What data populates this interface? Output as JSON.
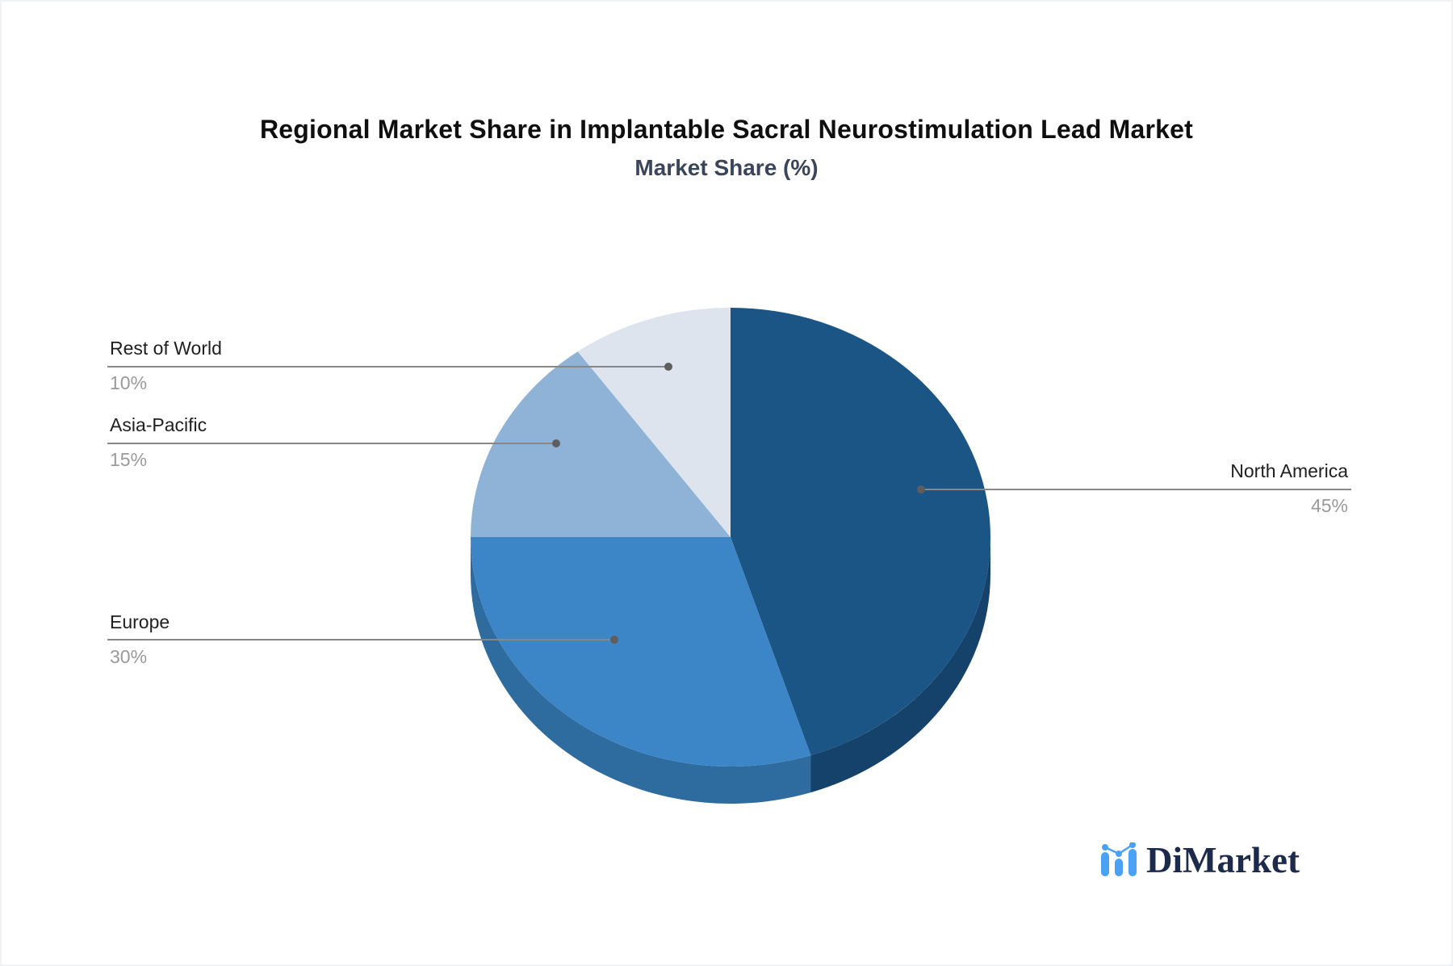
{
  "header": {
    "title": "Regional Market Share in Implantable Sacral Neurostimulation Lead Market",
    "subtitle": "Market Share (%)"
  },
  "chart_data": {
    "type": "pie",
    "title": "Regional Market Share in Implantable Sacral Neurostimulation Lead Market",
    "subtitle": "Market Share (%)",
    "unit": "%",
    "style": "3d-ellipse",
    "direction": "clockwise",
    "start_angle_deg": 0,
    "legend": "none",
    "categories": [
      "North America",
      "Europe",
      "Asia-Pacific",
      "Rest of World"
    ],
    "values": [
      45,
      30,
      15,
      10
    ],
    "value_labels": [
      "45%",
      "30%",
      "15%",
      "10%"
    ],
    "colors": [
      "#1b5586",
      "#3c86c8",
      "#8fb2d7",
      "#dde4ee"
    ],
    "rim_colors": [
      "#15426b",
      "#2e6b9e",
      "#7aa0c8",
      "#c6d2e2"
    ],
    "leader_line_color": "#878787",
    "leader_dot_color": "#5e5e5e",
    "label_color": "#1f1f1f",
    "value_color": "#9a9a9a"
  },
  "callouts": [
    {
      "id": "north-america",
      "label": "North America",
      "value": "45%"
    },
    {
      "id": "europe",
      "label": "Europe",
      "value": "30%"
    },
    {
      "id": "asia-pacific",
      "label": "Asia-Pacific",
      "value": "15%"
    },
    {
      "id": "rest-of-world",
      "label": "Rest of World",
      "value": "10%"
    }
  ],
  "logo": {
    "text": "DiMarket",
    "text_color": "#1c2b4c",
    "icon": "bar-chart-trend-icon",
    "icon_color": "#4aa2f6"
  }
}
